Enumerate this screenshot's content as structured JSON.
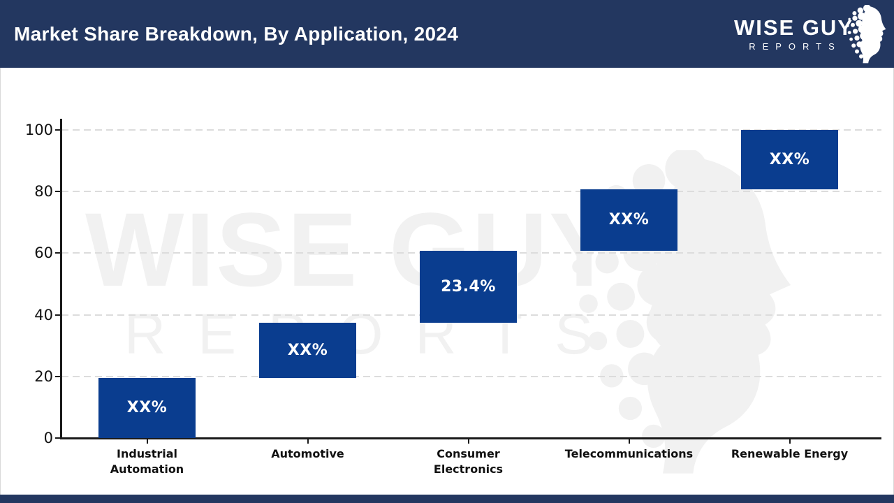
{
  "header": {
    "title": "Market Share Breakdown, By Application, 2024",
    "logo": {
      "line1": "WISE GUY",
      "line2": "REPORTS"
    }
  },
  "watermark": {
    "line1": "WISE GUY",
    "line2": "REPORTS"
  },
  "chart_data": {
    "type": "bar",
    "subtype": "waterfall-floating-bars",
    "title": "Market Share Breakdown, By Application, 2024",
    "categories": [
      "Industrial\nAutomation",
      "Automotive",
      "Consumer\nElectronics",
      "Telecommunications",
      "Renewable Energy"
    ],
    "segments": [
      {
        "category": "Industrial Automation",
        "label": "XX%",
        "start": 0,
        "end": 19.5
      },
      {
        "category": "Automotive",
        "label": "XX%",
        "start": 19.5,
        "end": 37.4
      },
      {
        "category": "Consumer Electronics",
        "label": "23.4%",
        "value": 23.4,
        "start": 37.4,
        "end": 60.8
      },
      {
        "category": "Telecommunications",
        "label": "XX%",
        "start": 60.8,
        "end": 80.8
      },
      {
        "category": "Renewable Energy",
        "label": "XX%",
        "start": 80.8,
        "end": 100
      }
    ],
    "yticks": [
      0,
      20,
      40,
      60,
      80,
      100
    ],
    "ylim": [
      0,
      105
    ],
    "xlabel": "",
    "ylabel": "",
    "grid": "horizontal-dashed",
    "legend": "none",
    "bar_color": "#0a3d8f",
    "bar_label_color": "#ffffff"
  },
  "colors": {
    "header_bg": "#233760",
    "footer_bg": "#233760",
    "bar": "#0a3d8f",
    "grid": "#dcdcdc",
    "axis": "#1a1a1a",
    "watermark": "#f1f1f1",
    "background": "#ffffff"
  }
}
